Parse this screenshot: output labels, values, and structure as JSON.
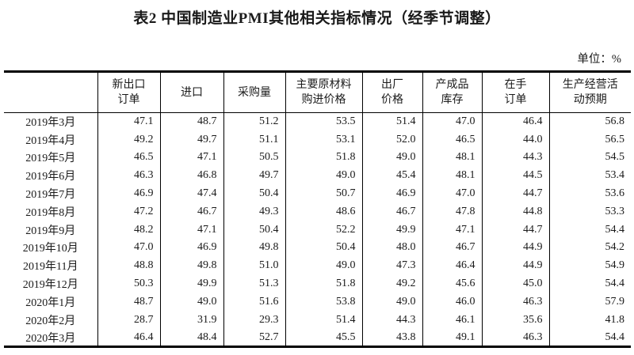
{
  "title": "表2 中国制造业PMI其他相关指标情况（经季节调整）",
  "unit_label": "单位：%",
  "table": {
    "columns": [
      "",
      "新出口\n订单",
      "进口",
      "采购量",
      "主要原材料\n购进价格",
      "出厂\n价格",
      "产成品\n库存",
      "在手\n订单",
      "生产经营活\n动预期"
    ],
    "rows": [
      {
        "period": "2019年3月",
        "values": [
          "47.1",
          "48.7",
          "51.2",
          "53.5",
          "51.4",
          "47.0",
          "46.4",
          "56.8"
        ]
      },
      {
        "period": "2019年4月",
        "values": [
          "49.2",
          "49.7",
          "51.1",
          "53.1",
          "52.0",
          "46.5",
          "44.0",
          "56.5"
        ]
      },
      {
        "period": "2019年5月",
        "values": [
          "46.5",
          "47.1",
          "50.5",
          "51.8",
          "49.0",
          "48.1",
          "44.3",
          "54.5"
        ]
      },
      {
        "period": "2019年6月",
        "values": [
          "46.3",
          "46.8",
          "49.7",
          "49.0",
          "45.4",
          "48.1",
          "44.5",
          "53.4"
        ]
      },
      {
        "period": "2019年7月",
        "values": [
          "46.9",
          "47.4",
          "50.4",
          "50.7",
          "46.9",
          "47.0",
          "44.7",
          "53.6"
        ]
      },
      {
        "period": "2019年8月",
        "values": [
          "47.2",
          "46.7",
          "49.3",
          "48.6",
          "46.7",
          "47.8",
          "44.8",
          "53.3"
        ]
      },
      {
        "period": "2019年9月",
        "values": [
          "48.2",
          "47.1",
          "50.4",
          "52.2",
          "49.9",
          "47.1",
          "44.7",
          "54.4"
        ]
      },
      {
        "period": "2019年10月",
        "values": [
          "47.0",
          "46.9",
          "49.8",
          "50.4",
          "48.0",
          "46.7",
          "44.9",
          "54.2"
        ]
      },
      {
        "period": "2019年11月",
        "values": [
          "48.8",
          "49.8",
          "51.0",
          "49.0",
          "47.3",
          "46.4",
          "44.9",
          "54.9"
        ]
      },
      {
        "period": "2019年12月",
        "values": [
          "50.3",
          "49.9",
          "51.3",
          "51.8",
          "49.2",
          "45.6",
          "45.0",
          "54.4"
        ]
      },
      {
        "period": "2020年1月",
        "values": [
          "48.7",
          "49.0",
          "51.6",
          "53.8",
          "49.0",
          "46.0",
          "46.3",
          "57.9"
        ]
      },
      {
        "period": "2020年2月",
        "values": [
          "28.7",
          "31.9",
          "29.3",
          "51.4",
          "44.3",
          "46.1",
          "35.6",
          "41.8"
        ]
      },
      {
        "period": "2020年3月",
        "values": [
          "46.4",
          "48.4",
          "52.7",
          "45.5",
          "43.8",
          "49.1",
          "46.3",
          "54.4"
        ]
      }
    ]
  }
}
